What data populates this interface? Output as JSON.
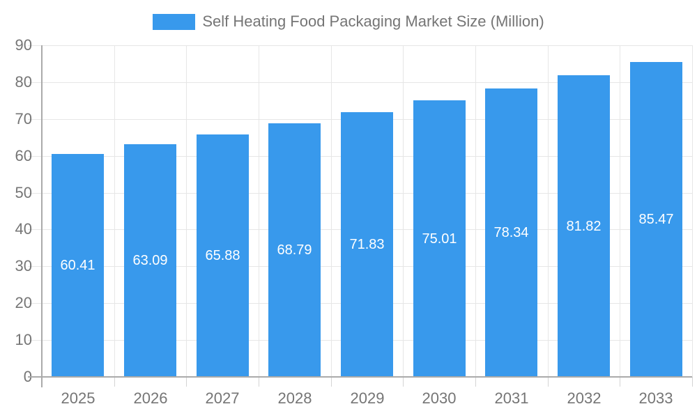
{
  "chart_data": {
    "type": "bar",
    "title": "Self Heating Food Packaging Market Size (Million)",
    "categories": [
      "2025",
      "2026",
      "2027",
      "2028",
      "2029",
      "2030",
      "2031",
      "2032",
      "2033"
    ],
    "values": [
      60.41,
      63.09,
      65.88,
      68.79,
      71.83,
      75.01,
      78.34,
      81.82,
      85.47
    ],
    "value_labels": [
      "60.41",
      "63.09",
      "65.88",
      "68.79",
      "71.83",
      "75.01",
      "78.34",
      "81.82",
      "85.47"
    ],
    "xlabel": "",
    "ylabel": "",
    "ylim": [
      0,
      90
    ],
    "ytick_step": 10,
    "ytick_labels": [
      "0",
      "10",
      "20",
      "30",
      "40",
      "50",
      "60",
      "70",
      "80",
      "90"
    ],
    "grid": true,
    "legend_position": "top",
    "colors": {
      "bar": "#3899ec",
      "bar_value_label": "#ffffff",
      "axis_line": "#aaaaaa",
      "gridline": "#e6e6e6",
      "tick": "#d4d4d4",
      "label": "#757575",
      "background": "#ffffff"
    }
  }
}
